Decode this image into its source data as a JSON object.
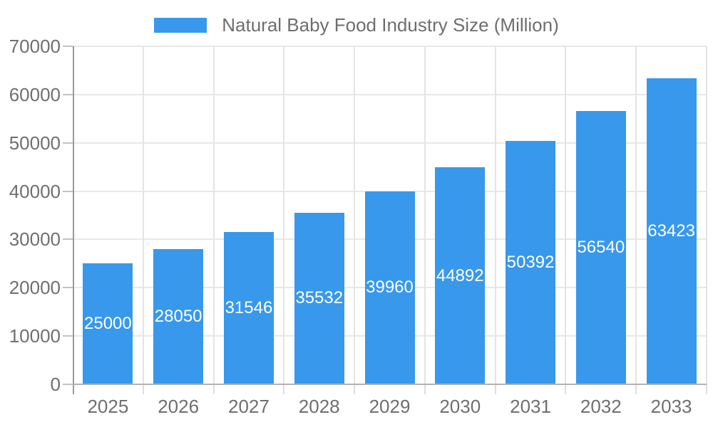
{
  "legend": {
    "label": "Natural Baby Food Industry Size (Million)"
  },
  "chart_data": {
    "type": "bar",
    "title": "Natural Baby Food Industry Size (Million)",
    "categories": [
      "2025",
      "2026",
      "2027",
      "2028",
      "2029",
      "2030",
      "2031",
      "2032",
      "2033"
    ],
    "values": [
      25000,
      28050,
      31546,
      35532,
      39960,
      44892,
      50392,
      56540,
      63423
    ],
    "xlabel": "",
    "ylabel": "",
    "ylim": [
      0,
      70000
    ],
    "y_ticks": [
      0,
      10000,
      20000,
      30000,
      40000,
      50000,
      60000,
      70000
    ],
    "grid": true,
    "legend_position": "top",
    "bar_color": "#3898EC",
    "value_label_color": "#FFFFFF",
    "axis_text_color": "#6F6F6F"
  }
}
